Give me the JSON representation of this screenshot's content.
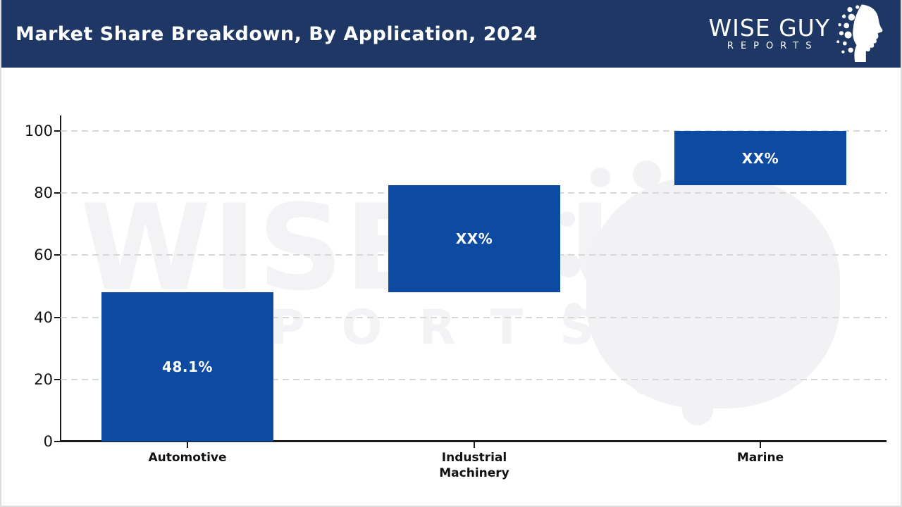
{
  "header": {
    "title": "Market Share Breakdown, By Application, 2024",
    "logo": {
      "line1": "WISE GUY",
      "line2": "REPORTS"
    }
  },
  "watermark": {
    "line1": "WISE GUY",
    "line2": "REPORTS"
  },
  "colors": {
    "header_bg": "#1e3765",
    "bar": "#0d4aa1",
    "bar_label": "#ffffff",
    "gridline": "#d8d8d8",
    "axis": "#1a1a1a",
    "watermark": "#f3f3f5"
  },
  "chart_data": {
    "type": "bar",
    "subtype": "floating-waterfall",
    "title": "Market Share Breakdown, By Application, 2024",
    "xlabel": "",
    "ylabel": "",
    "categories": [
      "Automotive",
      "Industrial\nMachinery",
      "Marine"
    ],
    "series": [
      {
        "name": "Market Share (%)",
        "segments": [
          {
            "category": "Automotive",
            "start": 0,
            "end": 48.1,
            "value": 48.1,
            "label": "48.1%"
          },
          {
            "category": "Industrial Machinery",
            "start": 48.1,
            "end": 82.5,
            "value": 34.4,
            "label": "XX%"
          },
          {
            "category": "Marine",
            "start": 82.5,
            "end": 100,
            "value": 17.5,
            "label": "XX%"
          }
        ]
      }
    ],
    "yticks": [
      0,
      20,
      40,
      60,
      80,
      100
    ],
    "ylim": [
      0,
      105
    ],
    "grid": "horizontal-dashed",
    "legend": "none"
  }
}
